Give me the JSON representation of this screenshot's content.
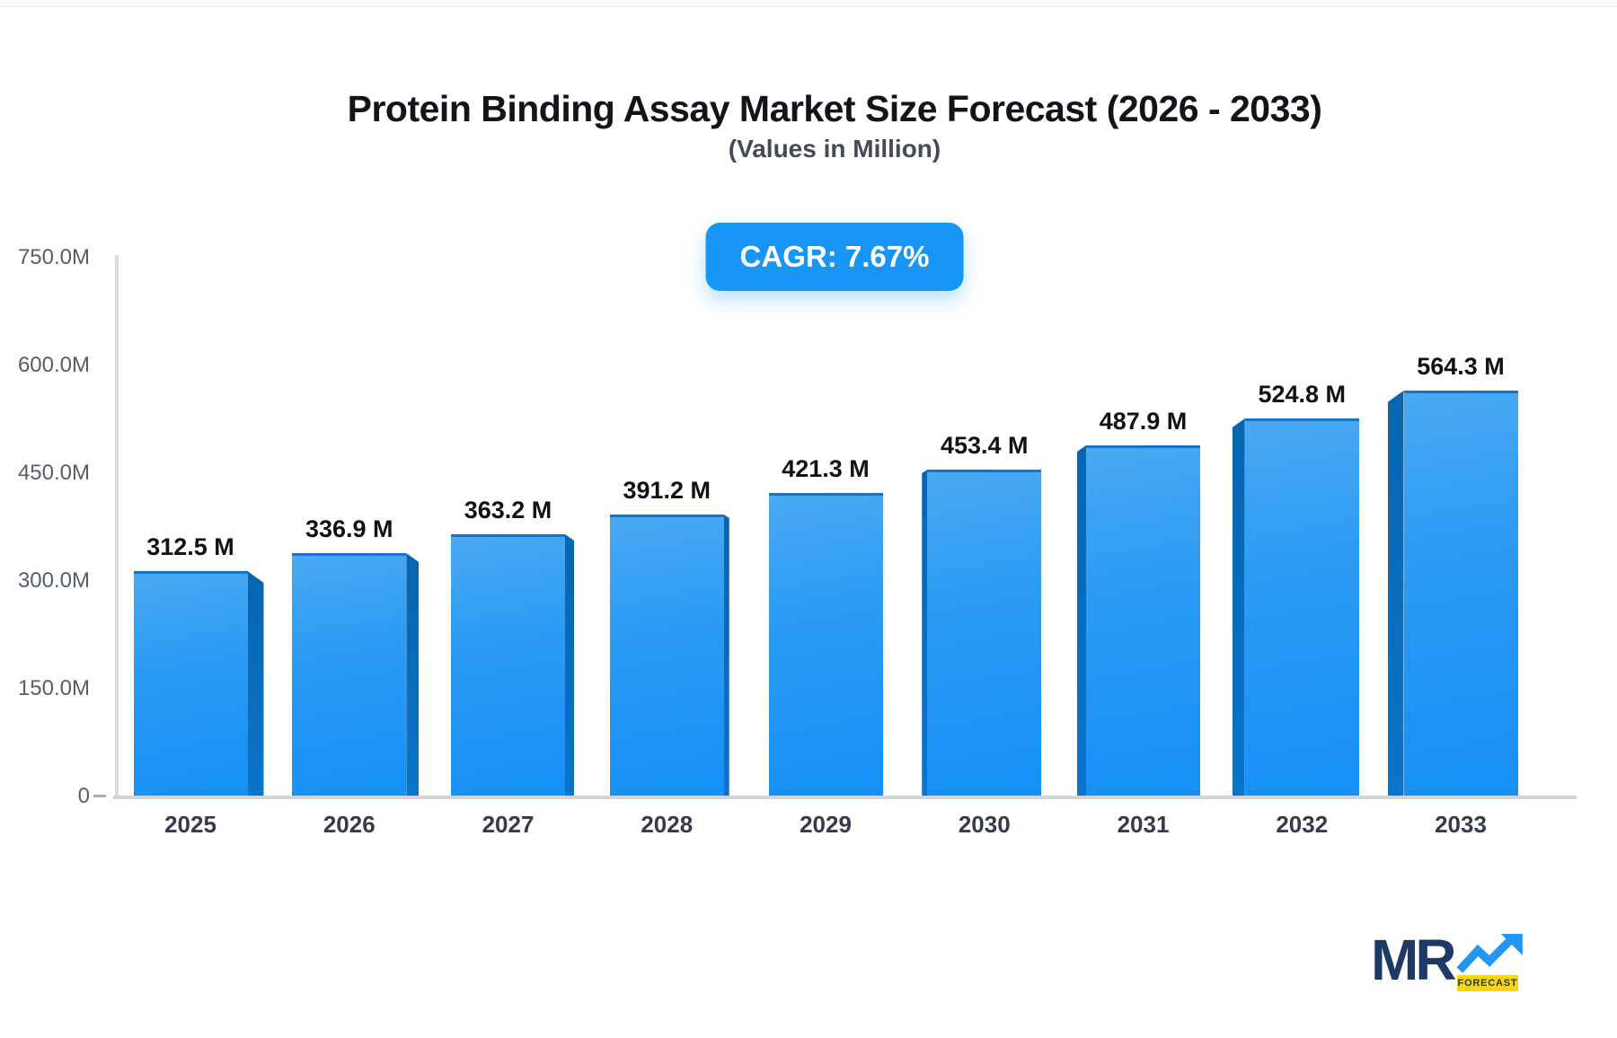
{
  "header": {
    "title": "Protein Binding Assay Market Size Forecast (2026 - 2033)",
    "subtitle": "(Values in Million)",
    "cagr_label": "CAGR: 7.67%"
  },
  "chart_data": {
    "type": "bar",
    "title": "Protein Binding Assay Market Size Forecast (2026 - 2033)",
    "subtitle": "(Values in Million)",
    "categories": [
      "2025",
      "2026",
      "2027",
      "2028",
      "2029",
      "2030",
      "2031",
      "2032",
      "2033"
    ],
    "values": [
      312.5,
      336.9,
      363.2,
      391.2,
      421.3,
      453.4,
      487.9,
      524.8,
      564.3
    ],
    "value_labels": [
      "312.5 M",
      "336.9 M",
      "363.2 M",
      "391.2 M",
      "421.3 M",
      "453.4 M",
      "487.9 M",
      "524.8 M",
      "564.3 M"
    ],
    "unit": "Million",
    "xlabel": "",
    "ylabel": "",
    "ylim": [
      0,
      750
    ],
    "y_ticks": [
      {
        "label": "750.0M",
        "value": 750
      },
      {
        "label": "600.0M",
        "value": 600
      },
      {
        "label": "450.0M",
        "value": 450
      },
      {
        "label": "300.0M",
        "value": 300
      },
      {
        "label": "150.0M",
        "value": 150
      },
      {
        "label": "0",
        "value": 0
      }
    ],
    "grid": false,
    "legend": false,
    "bar_style": "3d-perspective",
    "cagr": "7.67%"
  },
  "colors": {
    "bar_face_top": "#4aa9f2",
    "bar_face_bottom": "#1690f7",
    "bar_side": "#0a6cbb",
    "bar_top_edge": "#1474d4",
    "badge_background": "#1896f5",
    "badge_text": "#ffffff",
    "axis_line": "#dadde0",
    "baseline": "#d0d4d8",
    "title_text": "#121419",
    "subtitle_text": "#434b59",
    "y_label_text": "#565e6b",
    "x_label_text": "#333b4d",
    "value_label_text": "#101218",
    "logo_navy": "#1d3a66",
    "logo_arrow_blue": "#2196f3",
    "logo_yellow": "#f8d40e"
  },
  "logo": {
    "text": "MR",
    "sub_text": "FORECAST",
    "icon": "trend-up-arrow-icon"
  }
}
